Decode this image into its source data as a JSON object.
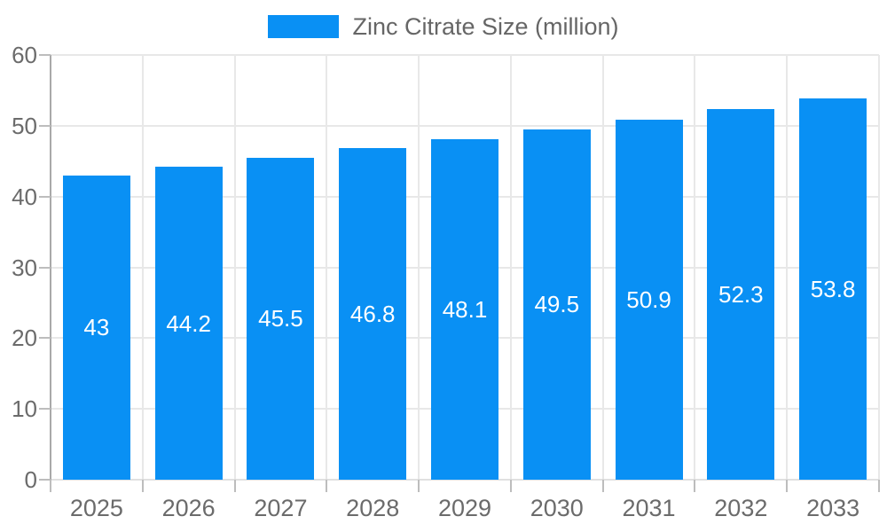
{
  "chart_data": {
    "type": "bar",
    "title": "",
    "legend": {
      "label": "Zinc Citrate Size (million)",
      "position": "top"
    },
    "categories": [
      "2025",
      "2026",
      "2027",
      "2028",
      "2029",
      "2030",
      "2031",
      "2032",
      "2033"
    ],
    "series": [
      {
        "name": "Zinc Citrate Size (million)",
        "values": [
          43,
          44.2,
          45.5,
          46.8,
          48.1,
          49.5,
          50.9,
          52.3,
          53.8
        ]
      }
    ],
    "data_labels": [
      "43",
      "44.2",
      "45.5",
      "46.8",
      "48.1",
      "49.5",
      "50.9",
      "52.3",
      "53.8"
    ],
    "xlabel": "",
    "ylabel": "",
    "ylim": [
      0,
      60
    ],
    "yticks": [
      0,
      10,
      20,
      30,
      40,
      50,
      60
    ],
    "grid": true,
    "data_labels_visible": true
  },
  "colors": {
    "bar": "#0990F4",
    "data_label": "#ffffff",
    "axis_label": "#6b6b6b",
    "legend_text": "#666666",
    "grid": "#e8e8e8",
    "axis_line": "#a9a9a9",
    "x_axis_line": "#e0e0e0",
    "tick": "#bdbdbd",
    "background": "#ffffff"
  }
}
